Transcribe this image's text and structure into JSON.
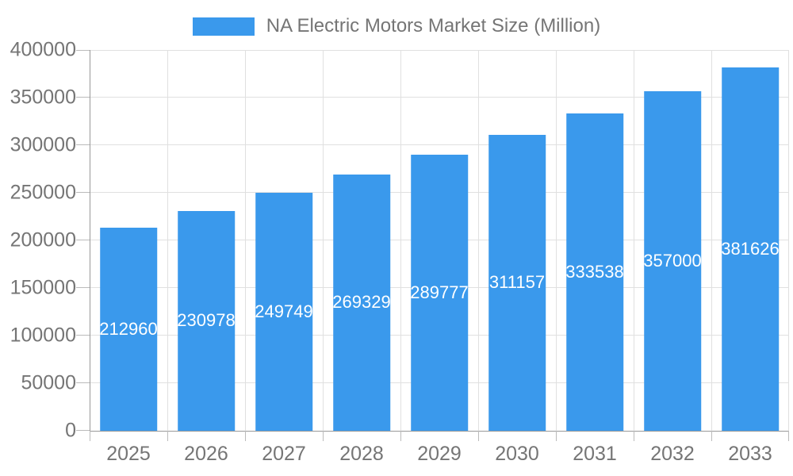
{
  "colors": {
    "bar": "#3A99EC",
    "axis_line": "#999999",
    "gridline": "#e0e0e0",
    "tick": "#bbbbbb",
    "label_text": "#757575",
    "value_label_text": "#ffffff",
    "background": "#ffffff"
  },
  "chart_data": {
    "type": "bar",
    "title": "NA Electric Motors Market Size (Million)",
    "categories": [
      "2025",
      "2026",
      "2027",
      "2028",
      "2029",
      "2030",
      "2031",
      "2032",
      "2033"
    ],
    "series": [
      {
        "name": "NA Electric Motors Market Size (Million)",
        "color": "#3A99EC",
        "values": [
          212960,
          230978,
          249749,
          269329,
          289777,
          311157,
          333538,
          357000,
          381626
        ]
      }
    ],
    "xlabel": "",
    "ylabel": "",
    "ylim": [
      0,
      400000
    ],
    "yticks": [
      0,
      50000,
      100000,
      150000,
      200000,
      250000,
      300000,
      350000,
      400000
    ],
    "grid": true,
    "legend_position": "top-center",
    "value_labels_position": "inside-center"
  }
}
